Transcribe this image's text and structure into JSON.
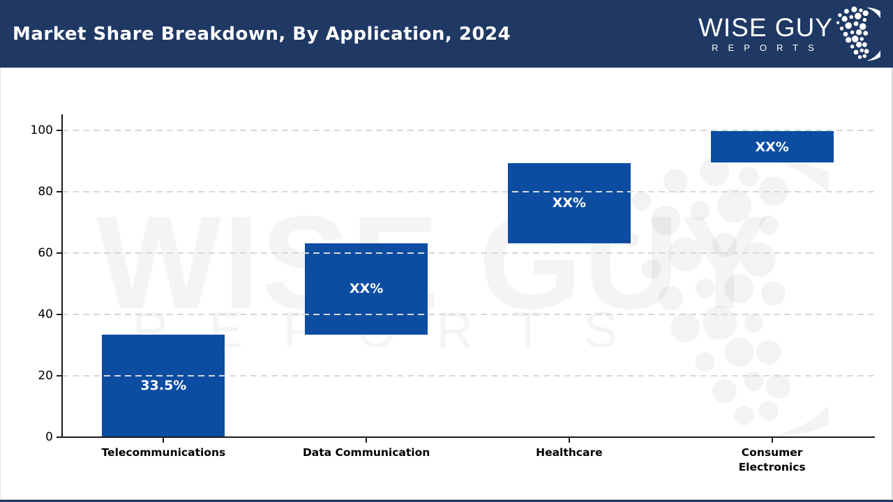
{
  "header": {
    "title": "Market Share Breakdown, By Application, 2024",
    "logo": {
      "name": "WISE GUY",
      "tagline": "REPORTS"
    }
  },
  "watermark": {
    "name": "WISE GUY",
    "tagline": "REPORTS"
  },
  "chart_data": {
    "type": "bar",
    "subtype": "waterfall",
    "title": "Market Share Breakdown, By Application, 2024",
    "categories": [
      "Telecommunications",
      "Data Communication",
      "Healthcare",
      "Consumer\nElectronics"
    ],
    "bars": [
      {
        "category": "Telecommunications",
        "start": 0,
        "end": 33.5,
        "label": "33.5%"
      },
      {
        "category": "Data Communication",
        "start": 33.5,
        "end": 63.2,
        "label": "XX%"
      },
      {
        "category": "Healthcare",
        "start": 63.2,
        "end": 89.3,
        "label": "XX%"
      },
      {
        "category": "Consumer Electronics",
        "start": 89.5,
        "end": 99.8,
        "label": "XX%"
      }
    ],
    "ylim": [
      0,
      100
    ],
    "yticks": [
      0,
      20,
      40,
      60,
      80,
      100
    ],
    "xlabel": "",
    "ylabel": "",
    "bar_color": "#0c4da2",
    "grid": "dashed-horizontal-over-bars",
    "legend": "none"
  },
  "colors": {
    "header_bg": "#1f3864",
    "footer_bg": "#1f3864",
    "bar": "#0c4da2",
    "gridline": "#d8d8d8"
  }
}
